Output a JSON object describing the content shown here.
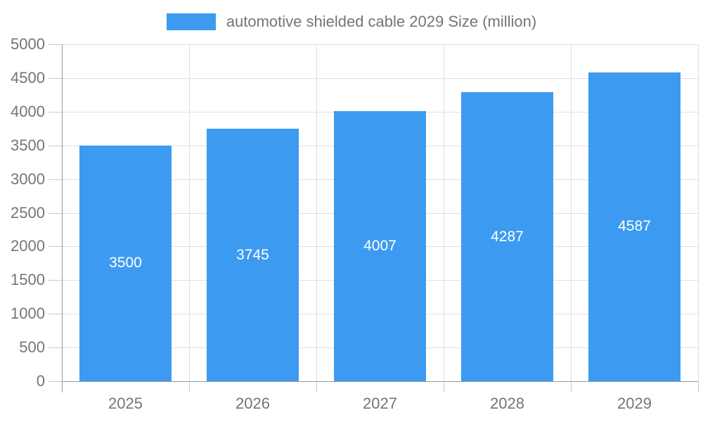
{
  "legend": {
    "label": "automotive shielded cable 2029 Size (million)"
  },
  "chart_data": {
    "type": "bar",
    "title": "",
    "categories": [
      "2025",
      "2026",
      "2027",
      "2028",
      "2029"
    ],
    "series": [
      {
        "name": "automotive shielded cable 2029 Size (million)",
        "values": [
          3500,
          3745,
          4007,
          4287,
          4587
        ]
      }
    ],
    "value_labels": [
      "3500",
      "3745",
      "4007",
      "4287",
      "4587"
    ],
    "xlabel": "",
    "ylabel": "",
    "ylim": [
      0,
      5000
    ],
    "yticks": [
      0,
      500,
      1000,
      1500,
      2000,
      2500,
      3000,
      3500,
      4000,
      4500,
      5000
    ],
    "grid": true,
    "legend_position": "top",
    "bar_width_fraction": 0.72,
    "colors": {
      "bar": "#3C9BF0",
      "bar_value_text": "#FFFFFF",
      "axis_line": "#999999",
      "gridline": "#E0E0E0",
      "tick": "#C9C9C9",
      "axis_text": "#757575",
      "legend_text": "#757575",
      "background": "#FFFFFF"
    }
  }
}
